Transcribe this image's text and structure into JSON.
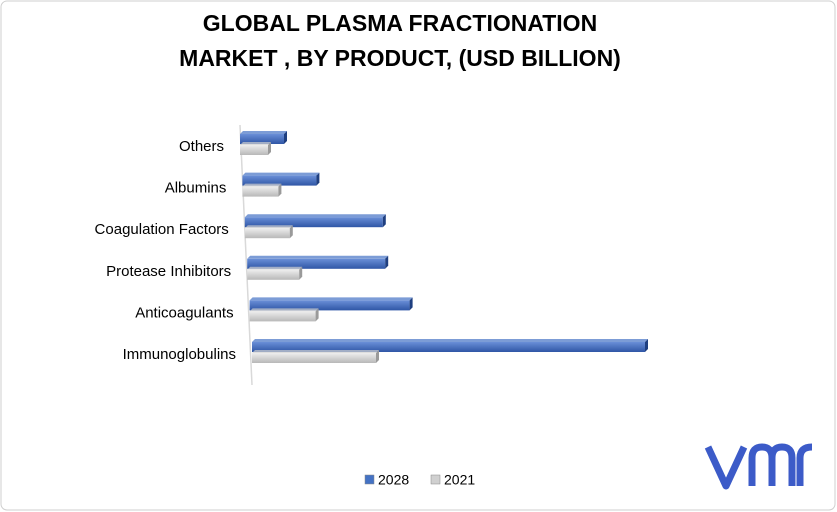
{
  "chart_data": {
    "type": "bar3d-horizontal",
    "title": "GLOBAL PLASMA FRACTIONATION MARKET , BY PRODUCT, (USD BILLION)",
    "categories": [
      "Others",
      "Albumins",
      "Coagulation Factors",
      "Protease Inhibitors",
      "Anticoagulants",
      "Immunoglobulins"
    ],
    "series": [
      {
        "name": "2028",
        "color": "#4472c4",
        "values": [
          4.4,
          7.4,
          13.8,
          13.8,
          16.0,
          39.3
        ]
      },
      {
        "name": "2021",
        "color": "#d0d0d0",
        "values": [
          2.8,
          3.6,
          4.5,
          5.2,
          6.6,
          12.4
        ]
      }
    ]
  }
}
